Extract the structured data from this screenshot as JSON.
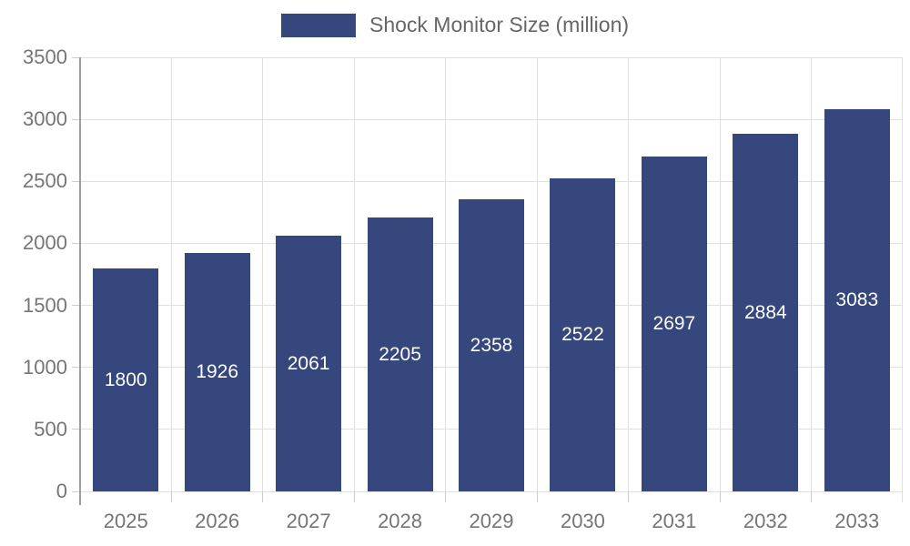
{
  "legend": {
    "label": "Shock Monitor Size (million)",
    "swatch_color": "#35477D"
  },
  "chart_data": {
    "type": "bar",
    "title": "Shock Monitor Size (million)",
    "categories": [
      "2025",
      "2026",
      "2027",
      "2028",
      "2029",
      "2030",
      "2031",
      "2032",
      "2033"
    ],
    "series": [
      {
        "name": "Shock Monitor Size (million)",
        "values": [
          1800,
          1926,
          2061,
          2205,
          2358,
          2522,
          2697,
          2884,
          3083
        ]
      }
    ],
    "xlabel": "",
    "ylabel": "",
    "ylim": [
      0,
      3500
    ],
    "yticks": [
      0,
      500,
      1000,
      1500,
      2000,
      2500,
      3000,
      3500
    ],
    "grid": true,
    "legend_position": "top",
    "value_labels": "inside-center",
    "colors": {
      "bar": "#35477D",
      "value_label": "#ffffff",
      "axis_label": "#757575",
      "gridline": "#e0e0e0",
      "axis_line": "#9e9e9e",
      "tick": "#cccccc",
      "legend_text": "#666666",
      "background": "#ffffff"
    }
  }
}
